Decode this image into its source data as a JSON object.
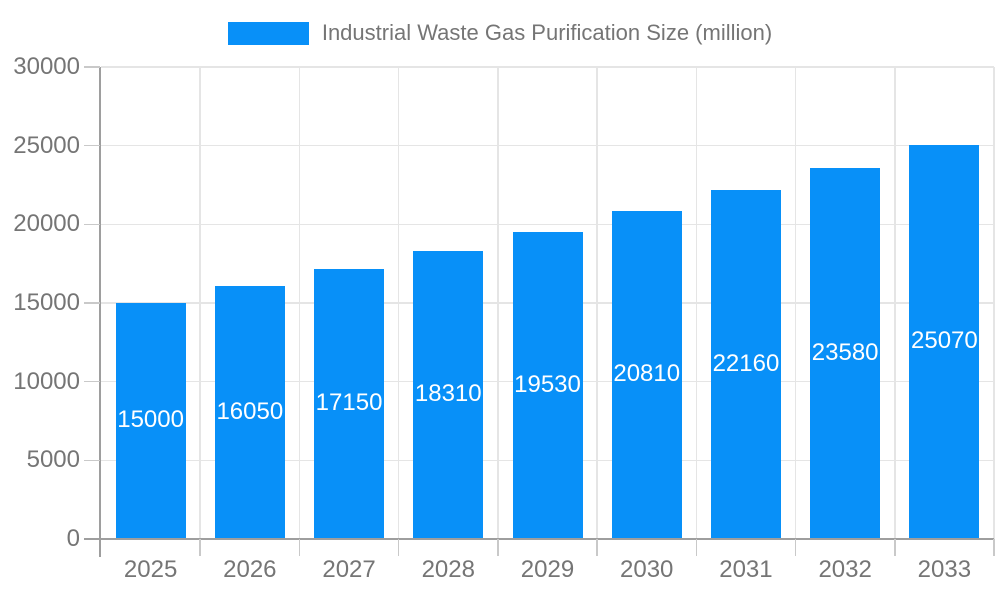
{
  "chart_data": {
    "type": "bar",
    "title": "Industrial Waste Gas Purification Size (million)",
    "legend_position": "top",
    "categories": [
      "2025",
      "2026",
      "2027",
      "2028",
      "2029",
      "2030",
      "2031",
      "2032",
      "2033"
    ],
    "series": [
      {
        "name": "Industrial Waste Gas Purification Size (million)",
        "values": [
          15000,
          16050,
          17150,
          18310,
          19530,
          20810,
          22160,
          23580,
          25070
        ]
      }
    ],
    "value_labels": [
      15000,
      16050,
      17150,
      18310,
      19530,
      20810,
      22160,
      23580,
      25070
    ],
    "value_label_position": "inside-center",
    "xlabel": "",
    "ylabel": "",
    "ylim": [
      0,
      30000
    ],
    "yticks": [
      0,
      5000,
      10000,
      15000,
      20000,
      25000,
      30000
    ],
    "grid": true,
    "colors": {
      "bar": "#0890f8",
      "value_label": "#ffffff",
      "axis_label": "#757575",
      "legend_text": "#757575",
      "axis_line": "#9e9e9e",
      "tick": "#c9c9c9",
      "gridline": "#e5e5e5",
      "background": "#ffffff"
    }
  }
}
